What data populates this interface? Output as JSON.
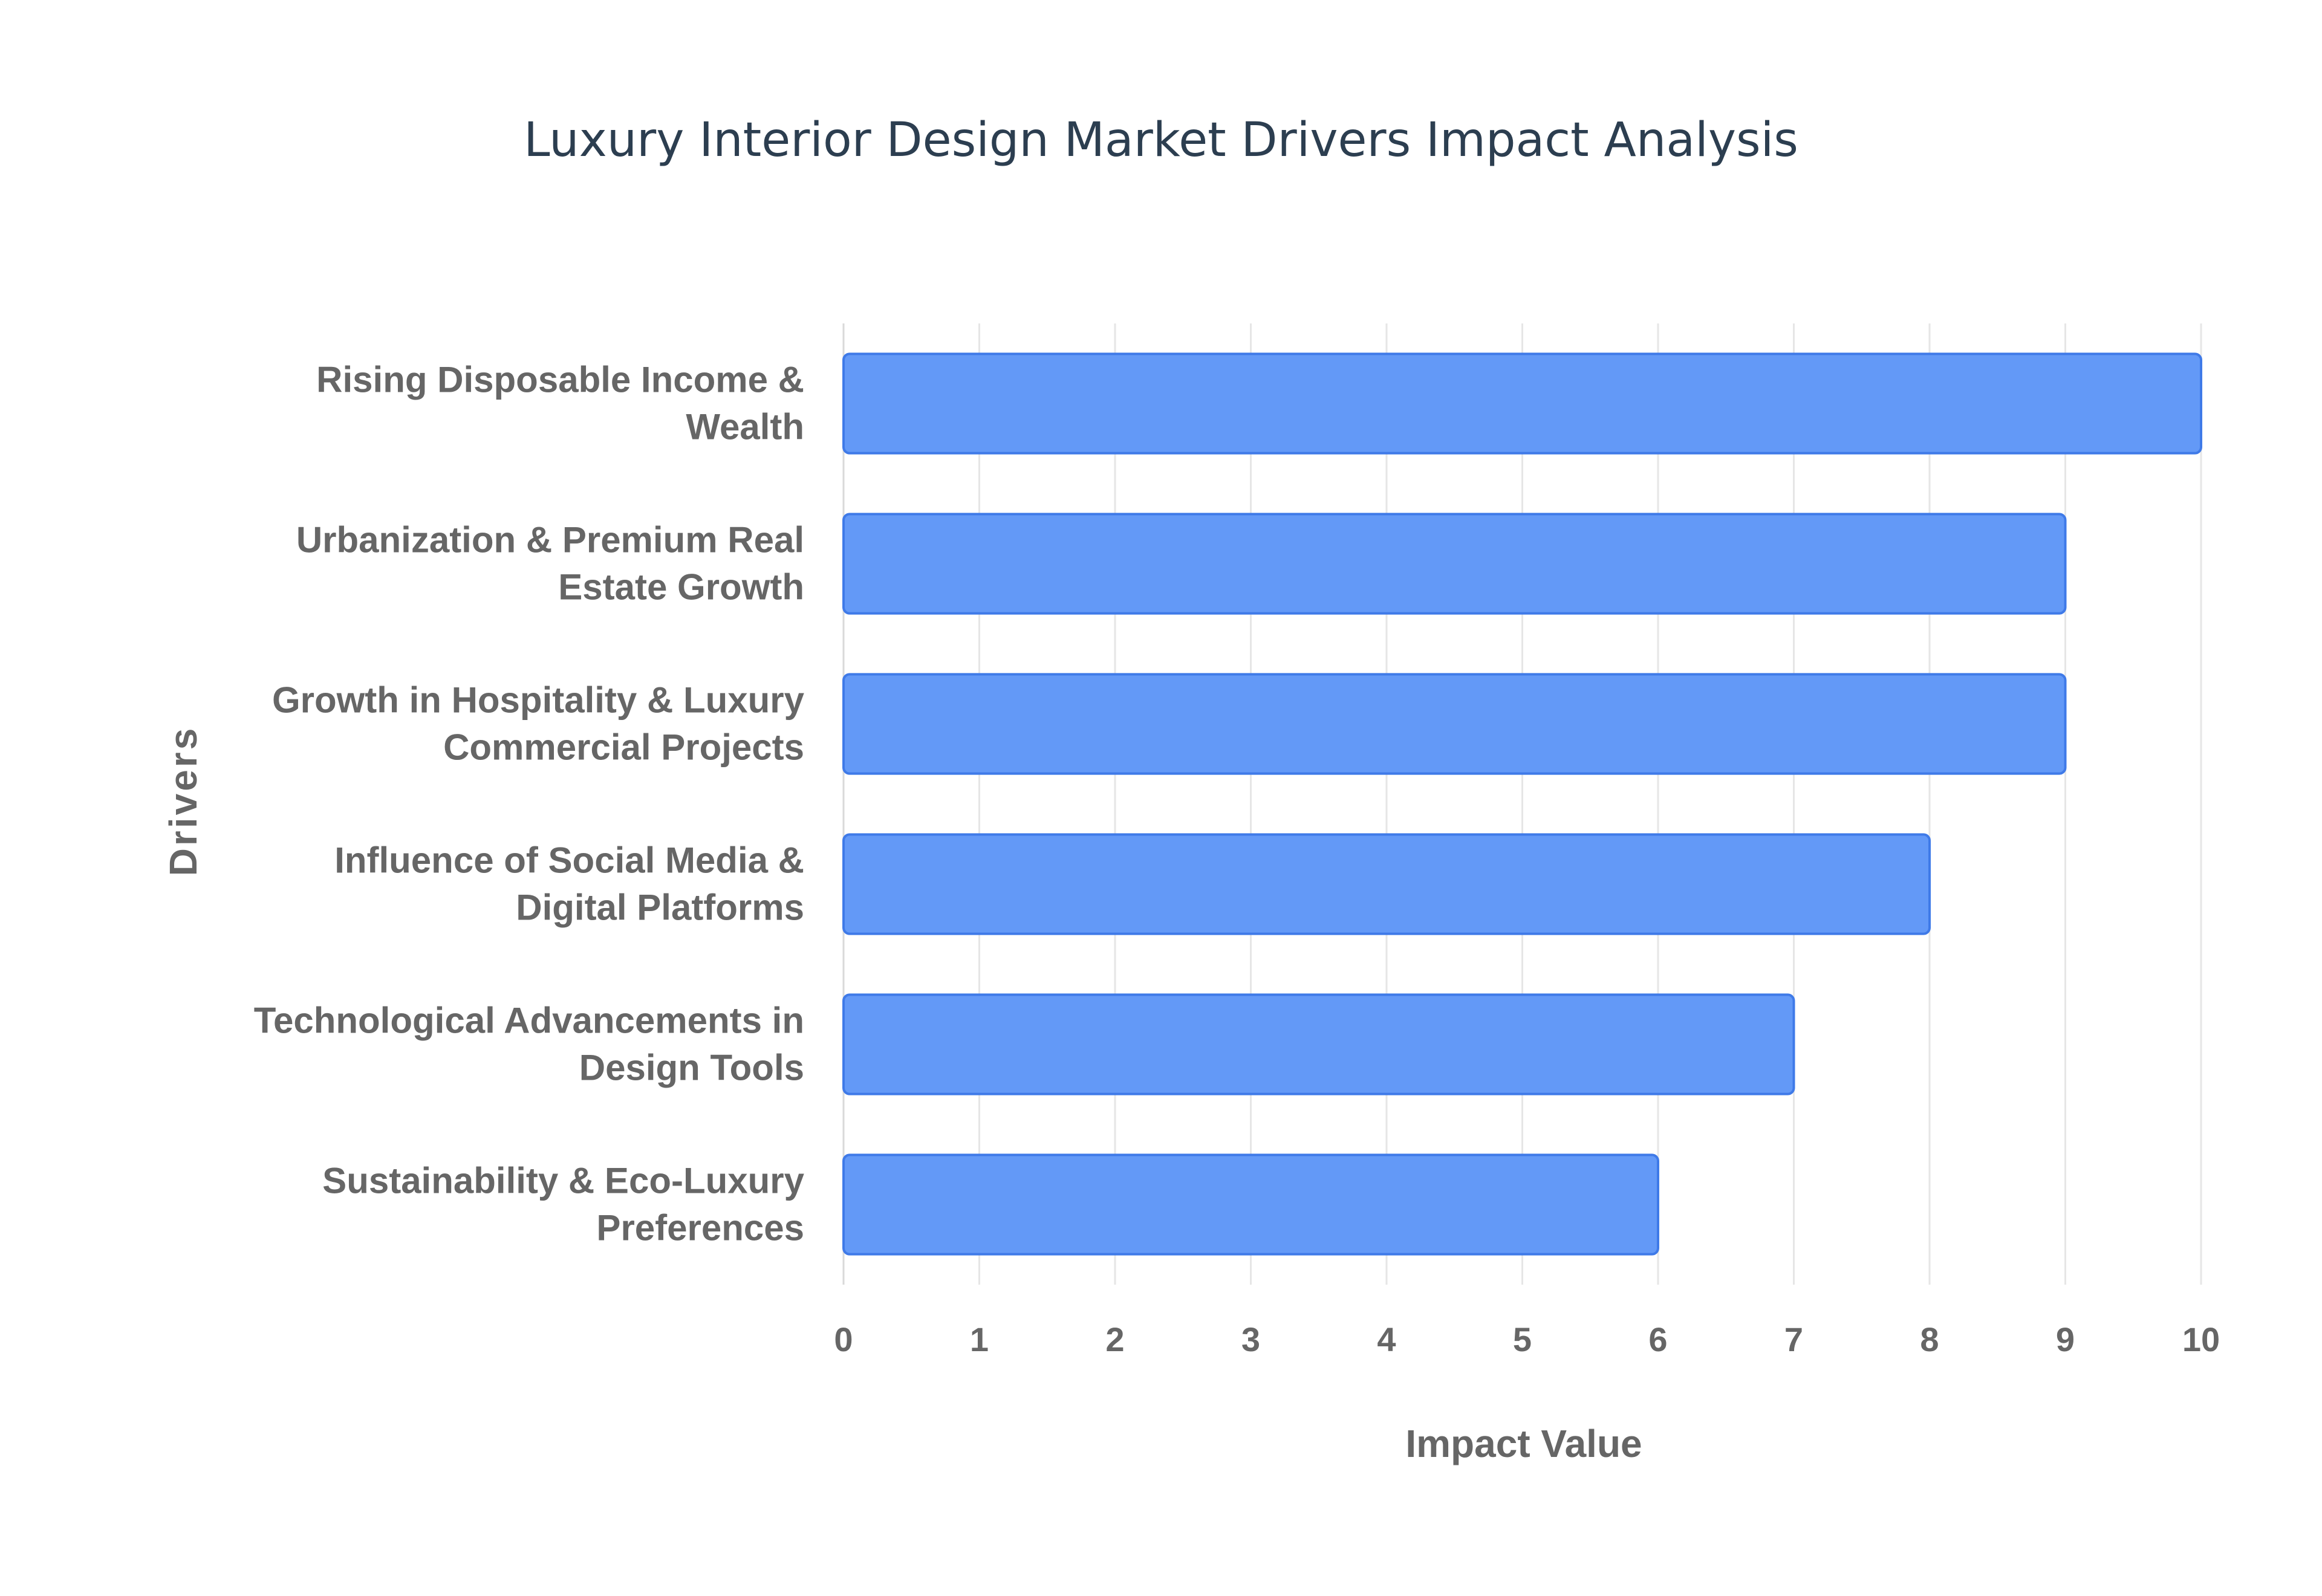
{
  "chart_data": {
    "type": "bar",
    "orientation": "horizontal",
    "title": "Luxury Interior Design Market Drivers Impact Analysis",
    "xlabel": "Impact Value",
    "ylabel": "Drivers",
    "xlim": [
      0,
      10
    ],
    "xticks": [
      0,
      1,
      2,
      3,
      4,
      5,
      6,
      7,
      8,
      9,
      10
    ],
    "grid": true,
    "legend": "none",
    "bar_color": "#6399f7",
    "bar_edge_color": "#3f7ae8",
    "categories": [
      [
        "Rising Disposable Income &",
        "Wealth"
      ],
      [
        "Urbanization & Premium Real",
        "Estate Growth"
      ],
      [
        "Growth in Hospitality & Luxury",
        "Commercial Projects"
      ],
      [
        "Influence of Social Media &",
        "Digital Platforms"
      ],
      [
        "Technological Advancements in",
        "Design Tools"
      ],
      [
        "Sustainability & Eco-Luxury",
        "Preferences"
      ]
    ],
    "values": [
      10,
      9,
      9,
      8,
      7,
      6
    ]
  }
}
